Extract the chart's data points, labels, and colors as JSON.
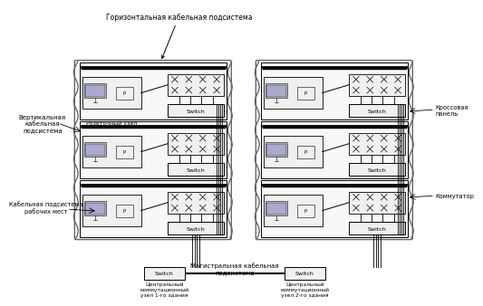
{
  "labels": {
    "top_label": "Горизонтальная кабельная подсистема",
    "left_vert": "Вертикальная\nкабельная\nподсистема",
    "left_cable": "Кабельная подсистема\nрабочих мест",
    "right_cross": "Кроссовая\nпанель",
    "right_comm": "Коммутатор",
    "bottom_main": "Магистральная кабельная\nподсистема",
    "node1": "Центральный\nкоммутационный\nузел 1-го здания",
    "node2": "Центральный\nкоммутационный\nузел 2-го здания",
    "rozet": "Розеточный узел",
    "switch": "Switch"
  },
  "colors": {
    "white": "#ffffff",
    "black": "#000000",
    "light_gray": "#f0f0f0",
    "med_gray": "#d8d8d8",
    "dark_gray": "#888888",
    "building_edge": "#666666",
    "floor_fill": "#f8f8f8",
    "pc_screen": "#aaaacc",
    "text": "#000000"
  }
}
